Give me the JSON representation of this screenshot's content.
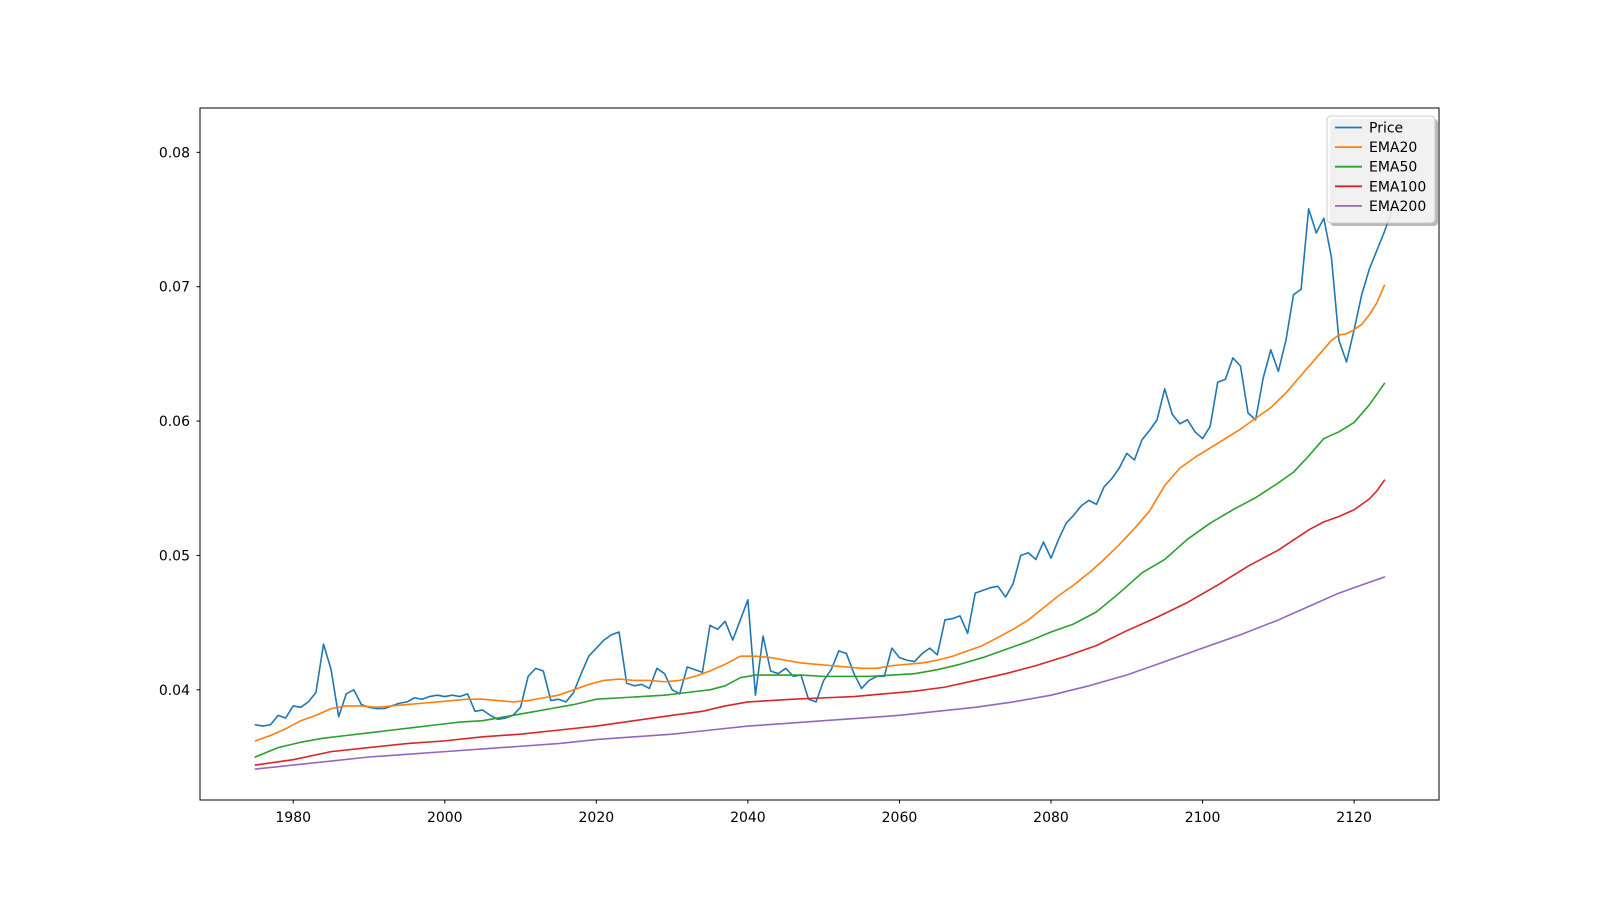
{
  "figure": {
    "background": "#ffffff"
  },
  "legend": {
    "position": "upper right",
    "items": [
      {
        "label": "Price",
        "color": "#1f77b4"
      },
      {
        "label": "EMA20",
        "color": "#ff7f0e"
      },
      {
        "label": "EMA50",
        "color": "#2ca02c"
      },
      {
        "label": "EMA100",
        "color": "#d62728"
      },
      {
        "label": "EMA200",
        "color": "#9467bd"
      }
    ]
  },
  "chart_data": {
    "type": "line",
    "title": "",
    "xlabel": "",
    "ylabel": "",
    "grid": false,
    "legend_position": "upper right",
    "xlim": [
      1967.7,
      2131.2
    ],
    "ylim": [
      0.0318,
      0.0833
    ],
    "x_ticks": [
      {
        "value": 1980,
        "label": "1980"
      },
      {
        "value": 2000,
        "label": "2000"
      },
      {
        "value": 2020,
        "label": "2020"
      },
      {
        "value": 2040,
        "label": "2040"
      },
      {
        "value": 2060,
        "label": "2060"
      },
      {
        "value": 2080,
        "label": "2080"
      },
      {
        "value": 2100,
        "label": "2100"
      },
      {
        "value": 2120,
        "label": "2120"
      }
    ],
    "y_ticks": [
      {
        "value": 0.04,
        "label": "0.04"
      },
      {
        "value": 0.05,
        "label": "0.05"
      },
      {
        "value": 0.06,
        "label": "0.06"
      },
      {
        "value": 0.07,
        "label": "0.07"
      },
      {
        "value": 0.08,
        "label": "0.08"
      }
    ],
    "series": [
      {
        "name": "Price",
        "color": "#1f77b4",
        "x_start": 1975,
        "x_step": 1,
        "values": [
          0.0374,
          0.0373,
          0.0374,
          0.0381,
          0.0379,
          0.0388,
          0.0387,
          0.0391,
          0.0398,
          0.0434,
          0.0415,
          0.038,
          0.0397,
          0.04,
          0.0389,
          0.0387,
          0.0386,
          0.0386,
          0.0388,
          0.039,
          0.0391,
          0.0394,
          0.0393,
          0.0395,
          0.0396,
          0.0395,
          0.0396,
          0.0395,
          0.0397,
          0.0384,
          0.0385,
          0.0381,
          0.0378,
          0.0379,
          0.0381,
          0.0387,
          0.041,
          0.0416,
          0.0414,
          0.0392,
          0.0393,
          0.0391,
          0.0398,
          0.0412,
          0.0425,
          0.0431,
          0.0437,
          0.0441,
          0.0443,
          0.0405,
          0.0403,
          0.0404,
          0.0401,
          0.0416,
          0.0412,
          0.04,
          0.0397,
          0.0417,
          0.0415,
          0.0413,
          0.0448,
          0.0445,
          0.0451,
          0.0437,
          0.0452,
          0.0467,
          0.0396,
          0.044,
          0.0414,
          0.0412,
          0.0416,
          0.041,
          0.0411,
          0.0393,
          0.0391,
          0.0407,
          0.0415,
          0.0429,
          0.0427,
          0.0412,
          0.0401,
          0.0407,
          0.041,
          0.041,
          0.0431,
          0.0424,
          0.0422,
          0.0421,
          0.0427,
          0.0431,
          0.0426,
          0.0452,
          0.0453,
          0.0455,
          0.0442,
          0.0472,
          0.0474,
          0.0476,
          0.0477,
          0.0469,
          0.0479,
          0.05,
          0.0502,
          0.0497,
          0.051,
          0.0498,
          0.0512,
          0.0524,
          0.053,
          0.0537,
          0.0541,
          0.0538,
          0.0551,
          0.0557,
          0.0565,
          0.0576,
          0.0571,
          0.0586,
          0.0593,
          0.0601,
          0.0624,
          0.0605,
          0.0598,
          0.0601,
          0.0592,
          0.0587,
          0.0596,
          0.0629,
          0.0631,
          0.0647,
          0.0641,
          0.0606,
          0.0601,
          0.0632,
          0.0653,
          0.0637,
          0.066,
          0.0694,
          0.0698,
          0.0758,
          0.074,
          0.0751,
          0.0722,
          0.066,
          0.0644,
          0.0668,
          0.0694,
          0.0713,
          0.0727,
          0.0741,
          0.0757
        ]
      },
      {
        "name": "EMA20",
        "color": "#ff7f0e",
        "x": [
          1975,
          1977,
          1979,
          1981,
          1983,
          1985,
          1987,
          1989,
          1991,
          1993,
          1995,
          1997,
          1999,
          2001,
          2003,
          2005,
          2007,
          2009,
          2011,
          2013,
          2015,
          2017,
          2019,
          2021,
          2023,
          2025,
          2027,
          2029,
          2031,
          2033,
          2035,
          2037,
          2039,
          2041,
          2043,
          2045,
          2047,
          2049,
          2051,
          2053,
          2055,
          2057,
          2059,
          2061,
          2063,
          2065,
          2067,
          2069,
          2071,
          2073,
          2075,
          2077,
          2079,
          2081,
          2083,
          2085,
          2087,
          2089,
          2091,
          2093,
          2095,
          2097,
          2099,
          2101,
          2103,
          2105,
          2107,
          2109,
          2111,
          2113,
          2115,
          2117,
          2118,
          2119,
          2120,
          2121,
          2122,
          2123,
          2124
        ],
        "values": [
          0.0362,
          0.0366,
          0.0371,
          0.0377,
          0.0381,
          0.0386,
          0.0388,
          0.0388,
          0.0387,
          0.0388,
          0.0389,
          0.039,
          0.0391,
          0.0392,
          0.0393,
          0.0393,
          0.0392,
          0.0391,
          0.0392,
          0.0394,
          0.0396,
          0.04,
          0.0404,
          0.0407,
          0.0408,
          0.0407,
          0.0407,
          0.0406,
          0.0407,
          0.041,
          0.0414,
          0.0419,
          0.0425,
          0.0425,
          0.0424,
          0.0422,
          0.042,
          0.0419,
          0.0418,
          0.0417,
          0.0416,
          0.0416,
          0.0418,
          0.0419,
          0.042,
          0.0422,
          0.0425,
          0.0429,
          0.0433,
          0.0439,
          0.0445,
          0.0452,
          0.0461,
          0.047,
          0.0478,
          0.0487,
          0.0497,
          0.0508,
          0.052,
          0.0533,
          0.0552,
          0.0565,
          0.0573,
          0.058,
          0.0587,
          0.0594,
          0.0602,
          0.061,
          0.0621,
          0.0634,
          0.0647,
          0.066,
          0.0664,
          0.0665,
          0.0668,
          0.0672,
          0.0679,
          0.0688,
          0.0701
        ]
      },
      {
        "name": "EMA50",
        "color": "#2ca02c",
        "x": [
          1975,
          1978,
          1981,
          1984,
          1987,
          1990,
          1993,
          1996,
          1999,
          2002,
          2005,
          2008,
          2011,
          2014,
          2017,
          2020,
          2023,
          2026,
          2029,
          2032,
          2035,
          2037,
          2039,
          2041,
          2044,
          2047,
          2050,
          2053,
          2056,
          2059,
          2062,
          2065,
          2068,
          2071,
          2074,
          2077,
          2080,
          2083,
          2086,
          2089,
          2092,
          2095,
          2098,
          2101,
          2104,
          2107,
          2110,
          2112,
          2114,
          2116,
          2118,
          2120,
          2122,
          2124
        ],
        "values": [
          0.035,
          0.0357,
          0.0361,
          0.0364,
          0.0366,
          0.0368,
          0.037,
          0.0372,
          0.0374,
          0.0376,
          0.0377,
          0.038,
          0.0383,
          0.0386,
          0.0389,
          0.0393,
          0.0394,
          0.0395,
          0.0396,
          0.0398,
          0.04,
          0.0403,
          0.0409,
          0.0411,
          0.0411,
          0.0411,
          0.041,
          0.041,
          0.041,
          0.0411,
          0.0412,
          0.0415,
          0.0419,
          0.0424,
          0.043,
          0.0436,
          0.0443,
          0.0449,
          0.0458,
          0.0472,
          0.0487,
          0.0497,
          0.0512,
          0.0524,
          0.0534,
          0.0543,
          0.0554,
          0.0562,
          0.0574,
          0.0587,
          0.0592,
          0.0599,
          0.0612,
          0.0628
        ]
      },
      {
        "name": "EMA100",
        "color": "#d62728",
        "x": [
          1975,
          1980,
          1985,
          1990,
          1995,
          2000,
          2005,
          2010,
          2015,
          2020,
          2025,
          2030,
          2034,
          2037,
          2040,
          2043,
          2046,
          2050,
          2054,
          2058,
          2062,
          2066,
          2070,
          2074,
          2078,
          2082,
          2086,
          2090,
          2094,
          2098,
          2102,
          2106,
          2110,
          2114,
          2116,
          2118,
          2120,
          2122,
          2123,
          2124
        ],
        "values": [
          0.0344,
          0.0348,
          0.0354,
          0.0357,
          0.036,
          0.0362,
          0.0365,
          0.0367,
          0.037,
          0.0373,
          0.0377,
          0.0381,
          0.0384,
          0.0388,
          0.0391,
          0.0392,
          0.0393,
          0.0394,
          0.0395,
          0.0397,
          0.0399,
          0.0402,
          0.0407,
          0.0412,
          0.0418,
          0.0425,
          0.0433,
          0.0444,
          0.0454,
          0.0465,
          0.0478,
          0.0492,
          0.0504,
          0.0519,
          0.0525,
          0.0529,
          0.0534,
          0.0542,
          0.0548,
          0.0556
        ]
      },
      {
        "name": "EMA200",
        "color": "#9467bd",
        "x": [
          1975,
          1980,
          1985,
          1990,
          1995,
          2000,
          2005,
          2010,
          2015,
          2020,
          2025,
          2030,
          2035,
          2040,
          2045,
          2050,
          2055,
          2060,
          2065,
          2070,
          2075,
          2080,
          2085,
          2090,
          2095,
          2100,
          2105,
          2110,
          2114,
          2118,
          2121,
          2124
        ],
        "values": [
          0.0341,
          0.0344,
          0.0347,
          0.035,
          0.0352,
          0.0354,
          0.0356,
          0.0358,
          0.036,
          0.0363,
          0.0365,
          0.0367,
          0.037,
          0.0373,
          0.0375,
          0.0377,
          0.0379,
          0.0381,
          0.0384,
          0.0387,
          0.0391,
          0.0396,
          0.0403,
          0.0411,
          0.0421,
          0.0431,
          0.0441,
          0.0452,
          0.0462,
          0.0472,
          0.0478,
          0.0484
        ]
      }
    ]
  }
}
